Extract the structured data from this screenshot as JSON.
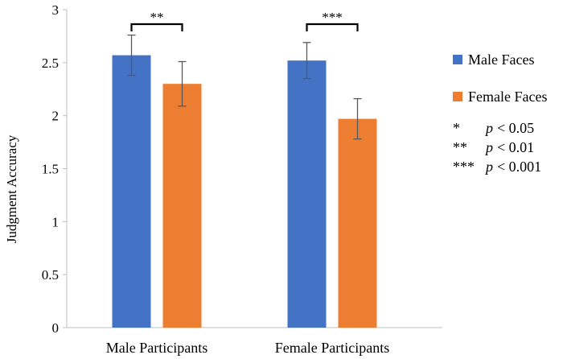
{
  "chart_data": {
    "type": "bar",
    "title": "",
    "xlabel": "",
    "ylabel": "Judgment Accuracy",
    "ylim": [
      0,
      3
    ],
    "yticks": [
      "0",
      "0.5",
      "1",
      "1.5",
      "2",
      "2.5",
      "3"
    ],
    "grid": false,
    "categories": [
      "Male Participants",
      "Female Participants"
    ],
    "series": [
      {
        "name": "Male Faces",
        "color": "#4472C4",
        "values": [
          2.57,
          2.52
        ],
        "errors": [
          0.19,
          0.17
        ]
      },
      {
        "name": "Female Faces",
        "color": "#ED7D31",
        "values": [
          2.3,
          1.97
        ],
        "errors": [
          0.21,
          0.19
        ]
      }
    ],
    "significance": [
      {
        "label": "**",
        "category_index": 0
      },
      {
        "label": "***",
        "category_index": 1
      }
    ],
    "legend_position": "right",
    "notes": [
      {
        "stars": "*",
        "p": "p",
        "rest": "< 0.05"
      },
      {
        "stars": "**",
        "p": "p",
        "rest": "< 0.01"
      },
      {
        "stars": "***",
        "p": "p",
        "rest": "< 0.001"
      }
    ]
  }
}
